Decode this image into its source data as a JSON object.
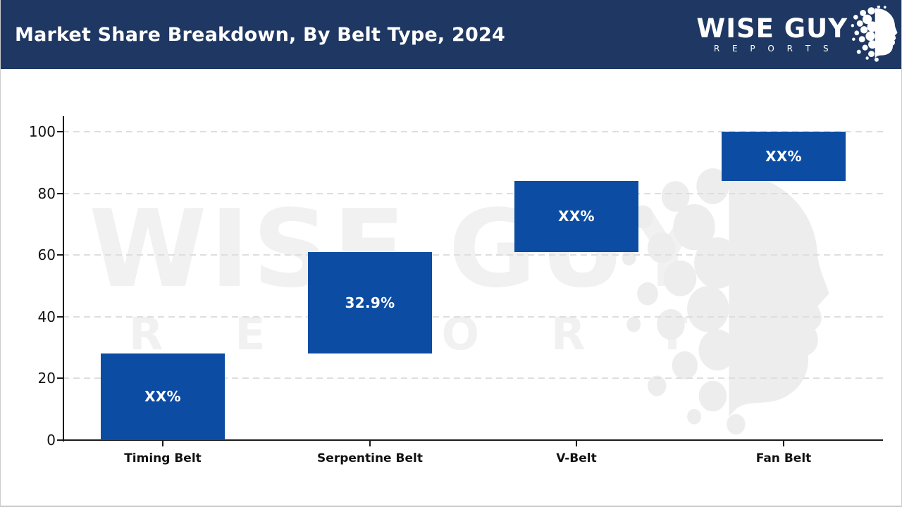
{
  "header": {
    "title": "Market Share Breakdown, By Belt Type, 2024",
    "logo": {
      "name": "WISE GUY",
      "subtitle": "R E P O R T S"
    }
  },
  "watermark": {
    "line1": "WISE GUY",
    "line2": "R E P O R T S"
  },
  "colors": {
    "header_bg": "#1f3863",
    "bar": "#0c4ca3",
    "grid": "#dedede",
    "axis": "#1a1a1a",
    "watermark": "#f1f1f1"
  },
  "chart_data": {
    "type": "bar",
    "subtype": "stacked-waterfall",
    "title": "Market Share Breakdown, By Belt Type, 2024",
    "categories": [
      "Timing Belt",
      "Serpentine Belt",
      "V-Belt",
      "Fan Belt"
    ],
    "bars": [
      {
        "category": "Timing Belt",
        "start": 0,
        "end": 28,
        "value_label": "XX%"
      },
      {
        "category": "Serpentine Belt",
        "start": 28,
        "end": 61,
        "value_label": "32.9%"
      },
      {
        "category": "V-Belt",
        "start": 61,
        "end": 84,
        "value_label": "XX%"
      },
      {
        "category": "Fan Belt",
        "start": 84,
        "end": 100,
        "value_label": "XX%"
      }
    ],
    "xlabel": "",
    "ylabel": "",
    "ylim": [
      0,
      105
    ],
    "yticks": [
      0,
      20,
      40,
      60,
      80,
      100
    ],
    "grid": "horizontal-dashed",
    "legend": "none",
    "bar_color": "#0c4ca3"
  }
}
